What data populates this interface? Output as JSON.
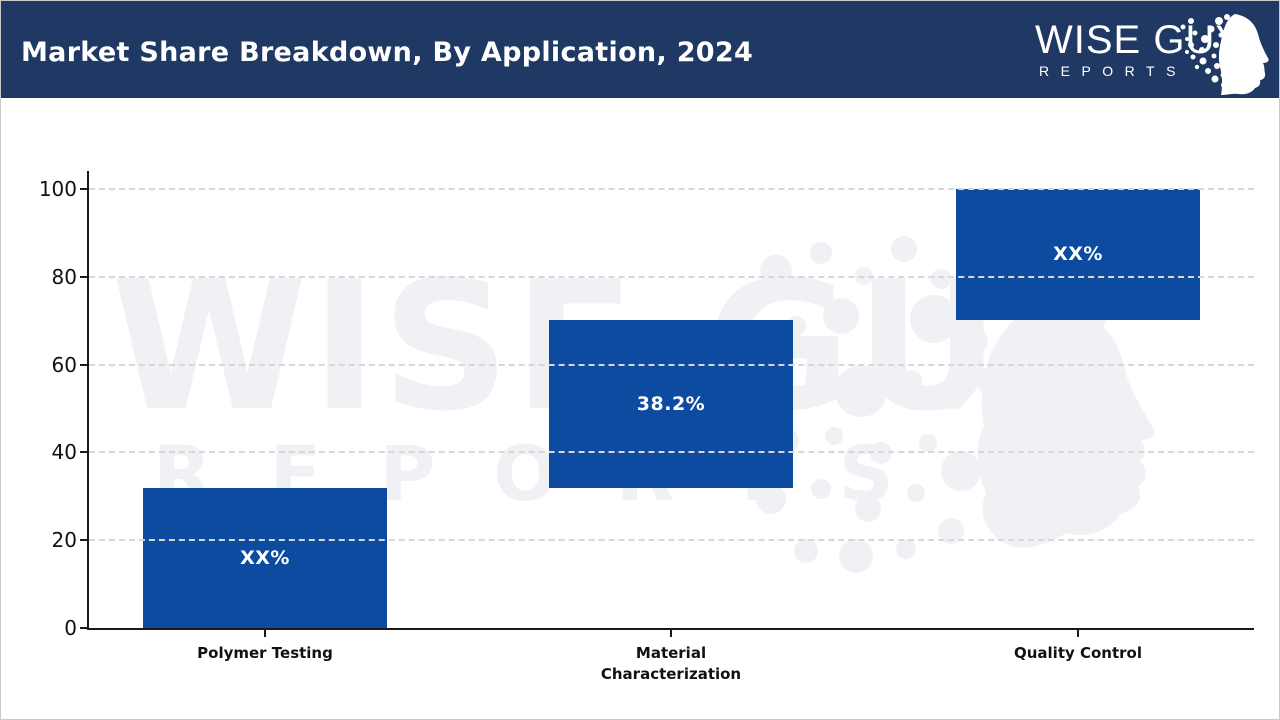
{
  "header": {
    "title": "Market Share Breakdown, By Application, 2024",
    "logo": {
      "line1": "WISE GUY",
      "line2": "REPORTS"
    }
  },
  "watermark": {
    "line1": "WISE GUY",
    "line2": "REPORTS"
  },
  "colors": {
    "header_bg": "#1f3864",
    "title_text": "#ffffff",
    "bar": "#0c4ba0",
    "bar_label": "#ffffff",
    "gridline": "#d7d7d7",
    "axis": "#1a1a1a",
    "tick_label": "#111111",
    "watermark": "#f0f1f4",
    "frame_border": "#c9c9c9"
  },
  "chart_data": {
    "type": "bar",
    "subtype": "waterfall",
    "title": "Market Share Breakdown, By Application, 2024",
    "categories": [
      "Polymer Testing",
      "Material Characterization",
      "Quality Control"
    ],
    "segments": [
      {
        "category": "Polymer Testing",
        "start": 0,
        "end": 32,
        "label": "XX%"
      },
      {
        "category": "Material Characterization",
        "start": 32,
        "end": 70.2,
        "label": "38.2%"
      },
      {
        "category": "Quality Control",
        "start": 70.2,
        "end": 100,
        "label": "XX%"
      }
    ],
    "ylim": [
      0,
      100
    ],
    "yticks": [
      0,
      20,
      40,
      60,
      80,
      100
    ],
    "xlabel": "",
    "ylabel": "",
    "grid": "horizontal-dashed-above-bars",
    "legend": "none"
  }
}
